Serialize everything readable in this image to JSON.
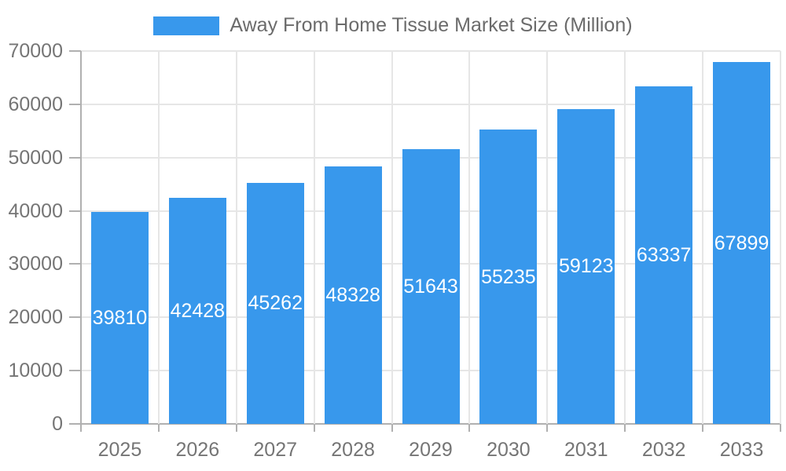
{
  "chart_data": {
    "type": "bar",
    "title": "Away From Home Tissue Market Size (Million)",
    "categories": [
      "2025",
      "2026",
      "2027",
      "2028",
      "2029",
      "2030",
      "2031",
      "2032",
      "2033"
    ],
    "values": [
      39810,
      42428,
      45262,
      48328,
      51643,
      55235,
      59123,
      63337,
      67899
    ],
    "series": [
      {
        "name": "Away From Home Tissue Market Size (Million)",
        "values": [
          39810,
          42428,
          45262,
          48328,
          51643,
          55235,
          59123,
          63337,
          67899
        ]
      }
    ],
    "xlabel": "",
    "ylabel": "",
    "ylim": [
      0,
      70000
    ],
    "y_ticks": [
      0,
      10000,
      20000,
      30000,
      40000,
      50000,
      60000,
      70000
    ],
    "legend_position": "top-center",
    "grid": "horizontal gridlines at each y tick and vertical gridlines at category boundaries, light gray; darker left y-axis and bottom x-axis lines with outside tick marks",
    "value_labels": "white, centered horizontally and vertically inside each bar",
    "colors": {
      "bar": "#3898EC",
      "bar_label_text": "#FFFFFF",
      "gridline": "#E6E6E6",
      "axis_line": "#B0B0B0",
      "tick_label_text": "#757575",
      "legend_text": "#6B6B6B",
      "background": "#FFFFFF"
    }
  }
}
